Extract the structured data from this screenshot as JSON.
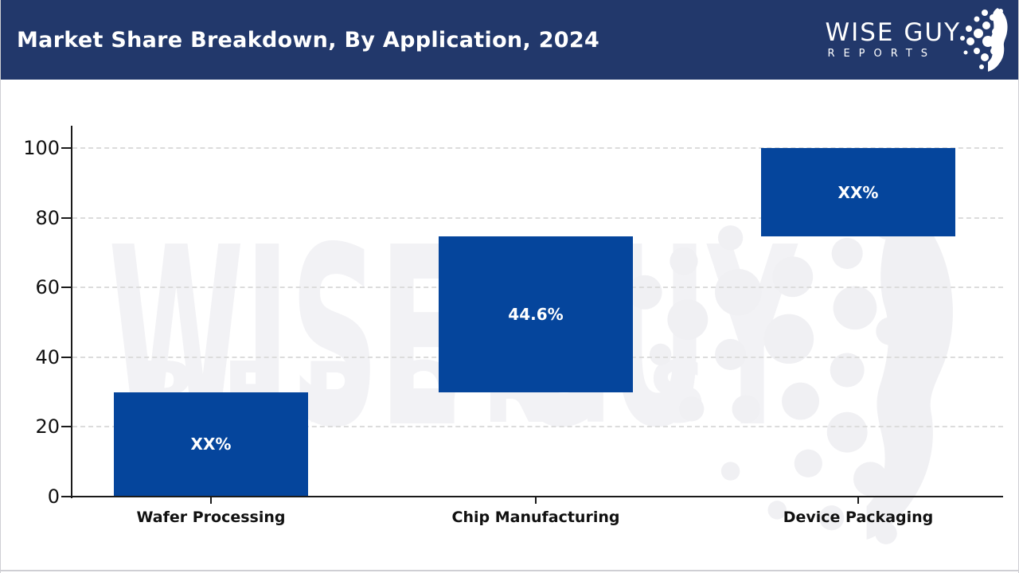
{
  "header": {
    "title": "Market Share Breakdown, By Application, 2024",
    "bg_color": "#22386B",
    "logo": {
      "line1": "WISE GUY",
      "line2": "REPORTS"
    }
  },
  "watermark": {
    "line1": "WISE GUY",
    "line2": "REPORTS"
  },
  "chart_data": {
    "type": "bar",
    "subtype": "waterfall",
    "title": "Market Share Breakdown, By Application, 2024",
    "categories": [
      "Wafer Processing",
      "Chip Manufacturing",
      "Device Packaging"
    ],
    "segments": [
      {
        "category": "Wafer Processing",
        "start": 0,
        "end": 30,
        "value_display": "XX%"
      },
      {
        "category": "Chip Manufacturing",
        "start": 30,
        "end": 74.6,
        "value_display": "44.6%"
      },
      {
        "category": "Device Packaging",
        "start": 74.6,
        "end": 100,
        "value_display": "XX%"
      }
    ],
    "ylim": [
      0,
      100
    ],
    "yticks": [
      0,
      20,
      40,
      60,
      80,
      100
    ],
    "xlabel": "",
    "ylabel": "",
    "grid": "horizontal-dashed",
    "legend": "none",
    "bar_color": "#05459C",
    "bar_label_color": "#ffffff",
    "axis_color": "#1a1a1a",
    "grid_color": "#dcdcdc"
  }
}
